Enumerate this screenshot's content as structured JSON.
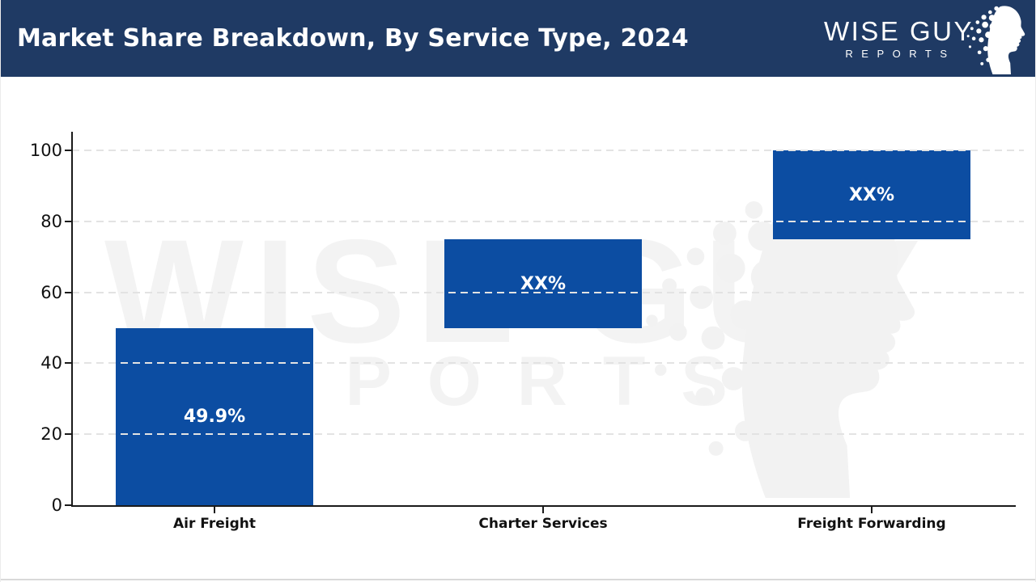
{
  "header": {
    "title": "Market Share Breakdown, By Service Type, 2024",
    "logo_line1": "WISE GUY",
    "logo_line2": "REPORTS"
  },
  "watermark": {
    "line1": "WISE GUY",
    "line2": "REPORTS"
  },
  "chart_data": {
    "type": "bar",
    "subtype": "floating-waterfall",
    "title": "Market Share Breakdown, By Service Type, 2024",
    "categories": [
      "Air Freight",
      "Charter Services",
      "Freight Forwarding"
    ],
    "segments": [
      {
        "category": "Air Freight",
        "start": 0,
        "end": 49.9,
        "label": "49.9%"
      },
      {
        "category": "Charter Services",
        "start": 49.9,
        "end": 74.9,
        "label": "XX%"
      },
      {
        "category": "Freight Forwarding",
        "start": 74.9,
        "end": 100,
        "label": "XX%"
      }
    ],
    "ylim": [
      0,
      100
    ],
    "yticks": [
      0,
      20,
      40,
      60,
      80,
      100
    ],
    "xlabel": "",
    "ylabel": "",
    "grid": "horizontal-dashed",
    "legend": "none",
    "bar_color": "#0c4da2",
    "bar_label_color": "#ffffff"
  },
  "colors": {
    "header_bg": "#1f3a64",
    "axis": "#1a1a1a",
    "gridline": "#e3e3e3",
    "watermark": "#f3f3f3"
  }
}
